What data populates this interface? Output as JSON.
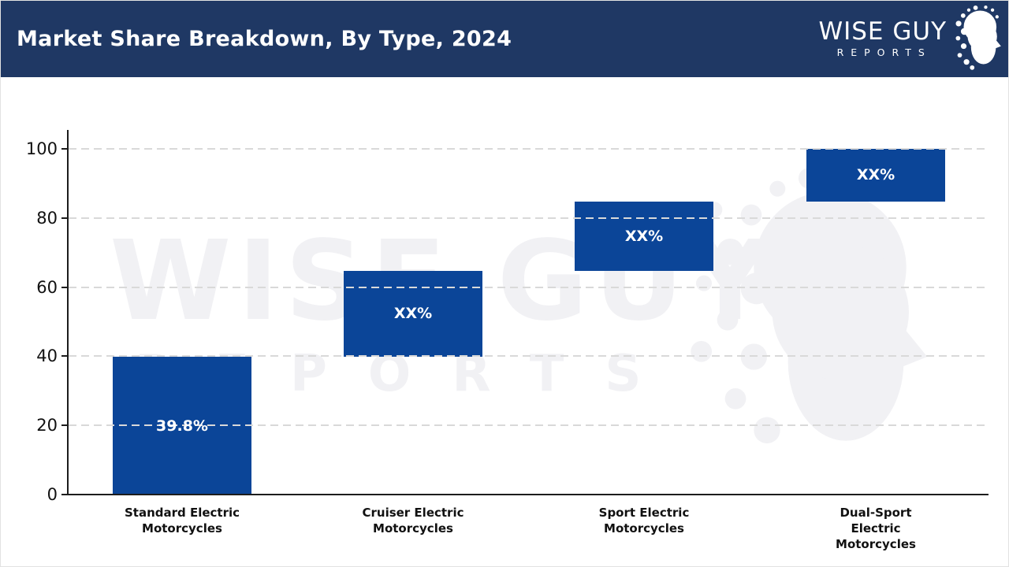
{
  "header": {
    "title": "Market Share Breakdown, By Type, 2024",
    "background_color": "#1f3864",
    "logo": {
      "line1": "WISE GUY",
      "line2": "REPORTS"
    }
  },
  "watermark": {
    "line1": "WISE GUY",
    "line2": "REPORTS"
  },
  "chart_data": {
    "type": "bar",
    "subtype": "waterfall",
    "title": "Market Share Breakdown, By Type, 2024",
    "categories": [
      "Standard Electric Motorcycles",
      "Cruiser Electric Motorcycles",
      "Sport Electric Motorcycles",
      "Dual-Sport Electric Motorcycles"
    ],
    "category_label_lines": [
      [
        "Standard Electric",
        "Motorcycles"
      ],
      [
        "Cruiser Electric",
        "Motorcycles"
      ],
      [
        "Sport Electric",
        "Motorcycles"
      ],
      [
        "Dual-Sport",
        "Electric",
        "Motorcycles"
      ]
    ],
    "bars": [
      {
        "category": "Standard Electric Motorcycles",
        "start": 0,
        "end": 39.8,
        "label": "39.8%"
      },
      {
        "category": "Cruiser Electric Motorcycles",
        "start": 39.8,
        "end": 64.8,
        "label": "XX%"
      },
      {
        "category": "Sport Electric Motorcycles",
        "start": 64.8,
        "end": 84.8,
        "label": "XX%"
      },
      {
        "category": "Dual-Sport Electric Motorcycles",
        "start": 84.8,
        "end": 100,
        "label": "XX%"
      }
    ],
    "ylim": [
      0,
      100
    ],
    "yticks": [
      0,
      20,
      40,
      60,
      80,
      100
    ],
    "grid": "dashed-horizontal",
    "legend": "none",
    "bar_color": "#0b4598",
    "bar_label_color": "#ffffff",
    "axis_color": "#1c1c1c",
    "gridline_color": "#d9d9d9"
  }
}
